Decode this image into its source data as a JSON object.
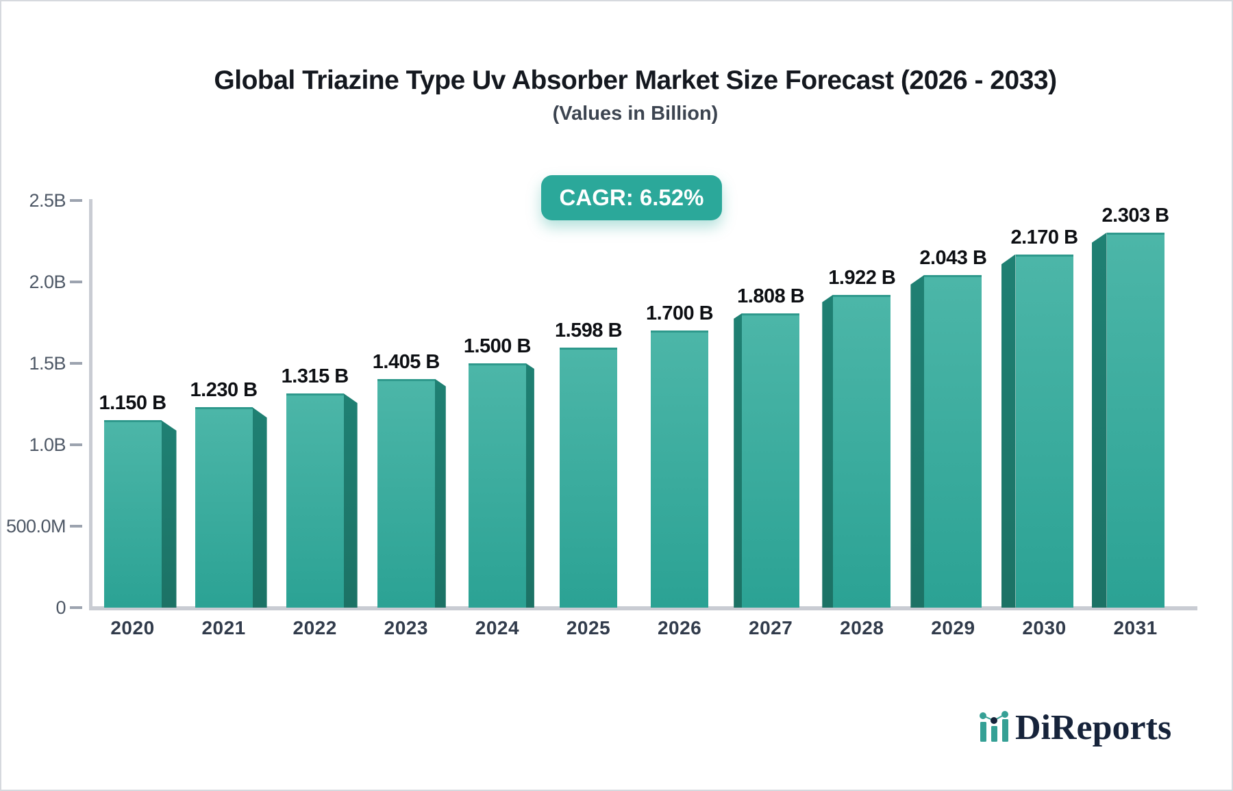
{
  "header": {
    "title": "Global Triazine Type Uv Absorber Market Size Forecast (2026 - 2033)",
    "subtitle": "(Values in Billion)",
    "cagr_label": "CAGR: 6.52%"
  },
  "footer": {
    "brand": "DiReports"
  },
  "colors": {
    "bar_front_top": "#4cb6a8",
    "bar_front_bottom": "#2ba294",
    "bar_top_edge": "#2e998c",
    "bar_side_top": "#1f8073",
    "bar_side_bottom": "#1c7265",
    "badge_bg": "#2ba89a",
    "axis_line": "#c9ccd3",
    "tick_dash": "#9ca3af",
    "tick_label": "#4d5765",
    "year_label": "#313b4b",
    "value_label": "#0d0f13",
    "title": "#14181f",
    "subtitle": "#3c4450",
    "logo_text": "#16233a",
    "logo_accent": "#35a095"
  },
  "chart_data": {
    "type": "bar",
    "title": "Global Triazine Type Uv Absorber Market Size Forecast (2026 - 2033)",
    "subtitle": "(Values in Billion)",
    "cagr": "6.52%",
    "categories": [
      "2020",
      "2021",
      "2022",
      "2023",
      "2024",
      "2025",
      "2026",
      "2027",
      "2028",
      "2029",
      "2030",
      "2031"
    ],
    "values": [
      1.15,
      1.23,
      1.315,
      1.405,
      1.5,
      1.598,
      1.7,
      1.808,
      1.922,
      2.043,
      2.17,
      2.303
    ],
    "value_labels": [
      "1.150 B",
      "1.230 B",
      "1.315 B",
      "1.405 B",
      "1.500 B",
      "1.598 B",
      "1.700 B",
      "1.808 B",
      "1.922 B",
      "2.043 B",
      "2.170 B",
      "2.303 B"
    ],
    "y_ticks": [
      {
        "value": 2.5,
        "label": "2.5B"
      },
      {
        "value": 2.0,
        "label": "2.0B"
      },
      {
        "value": 1.5,
        "label": "1.5B"
      },
      {
        "value": 1.0,
        "label": "1.0B"
      },
      {
        "value": 0.5,
        "label": "500.0M"
      },
      {
        "value": 0,
        "label": "0"
      }
    ],
    "ylim": [
      0,
      2.5
    ],
    "grid": false,
    "legend": false
  }
}
